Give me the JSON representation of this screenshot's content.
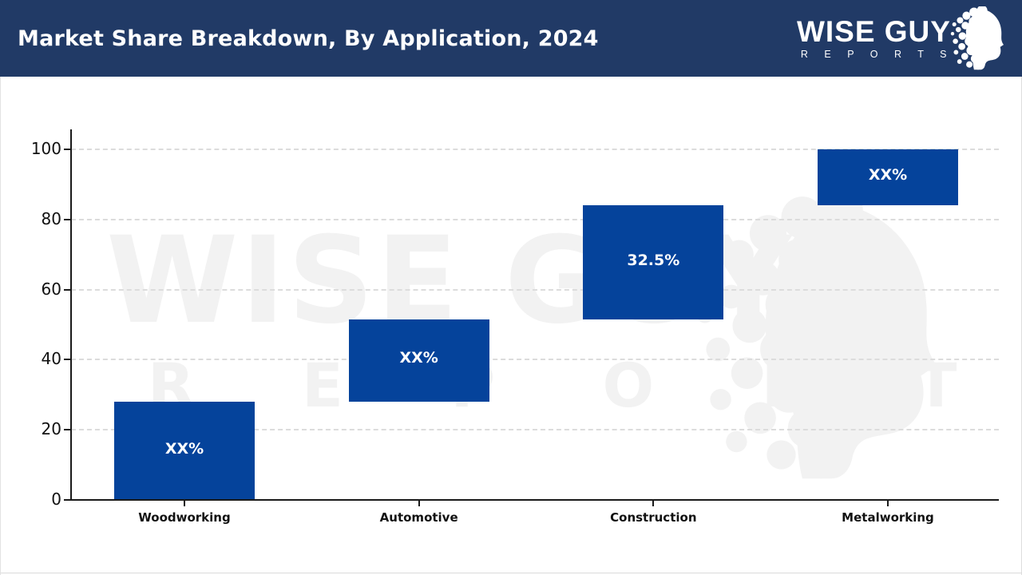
{
  "header": {
    "bg_color": "#213A66",
    "title": "Market Share Breakdown, By Application, 2024",
    "logo": {
      "line1": "WISE GUY",
      "line2": "R E P O R T S"
    }
  },
  "watermark": {
    "line1": "WISE GUY",
    "line2": "R E P O R T S"
  },
  "chart_data": {
    "type": "bar",
    "subtype": "floating-waterfall",
    "title": "Market Share Breakdown, By Application, 2024",
    "categories": [
      "Woodworking",
      "Automotive",
      "Construction",
      "Metalworking"
    ],
    "bars": [
      {
        "category": "Woodworking",
        "from": 0,
        "to": 28,
        "label": "XX%"
      },
      {
        "category": "Automotive",
        "from": 28,
        "to": 51.5,
        "label": "XX%"
      },
      {
        "category": "Construction",
        "from": 51.5,
        "to": 84,
        "label": "32.5%"
      },
      {
        "category": "Metalworking",
        "from": 84,
        "to": 100,
        "label": "XX%"
      }
    ],
    "ylim": [
      0,
      100
    ],
    "yticks": [
      0,
      20,
      40,
      60,
      80,
      100
    ],
    "bar_color": "#05439B",
    "bar_label_color": "#FFFFFF",
    "axis_color": "#1A1A1A",
    "grid": "dashed-horizontal",
    "legend": "none"
  }
}
